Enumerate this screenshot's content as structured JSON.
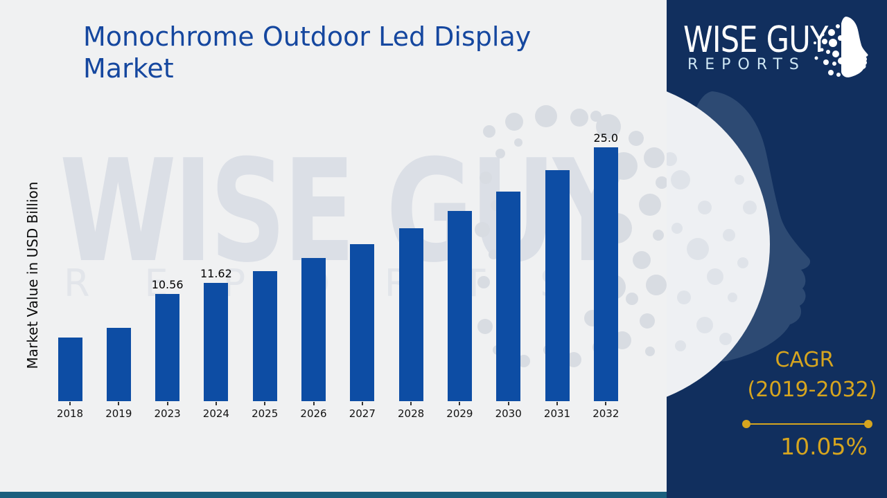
{
  "title": "Monochrome Outdoor Led Display Market",
  "watermark": {
    "line1": "WISE GUY",
    "line2": "REPORTS"
  },
  "chart_data": {
    "type": "bar",
    "title": "Monochrome Outdoor Led Display Market",
    "categories": [
      "2018",
      "2019",
      "2023",
      "2024",
      "2025",
      "2026",
      "2027",
      "2028",
      "2029",
      "2030",
      "2031",
      "2032"
    ],
    "values": [
      6.25,
      7.2,
      10.56,
      11.62,
      12.79,
      14.07,
      15.49,
      17.04,
      18.76,
      20.64,
      22.72,
      25.0
    ],
    "data_labels": [
      "",
      "",
      "10.56",
      "11.62",
      "",
      "",
      "",
      "",
      "",
      "",
      "",
      "25.0"
    ],
    "xlabel": "",
    "ylabel": "Market Value in USD Billion",
    "ylim": [
      0,
      27
    ],
    "grid": false,
    "legend": "none"
  },
  "panel": {
    "logo": {
      "line1": "WISE GUY",
      "line2": "REPORTS"
    },
    "cagr_label": "CAGR",
    "cagr_range": "(2019-2032)",
    "cagr_value": "10.05%"
  },
  "colors": {
    "background": "#f0f1f2",
    "bar": "#0d4da4",
    "title_blue": "#15479f",
    "panel_navy": "#112f5e",
    "panel_face": "#2d4a73",
    "panel_circle": "#eef0f3",
    "gold": "#d6a51f",
    "strip_teal": "#1b5f7e",
    "watermark": "#dbdfe6"
  }
}
